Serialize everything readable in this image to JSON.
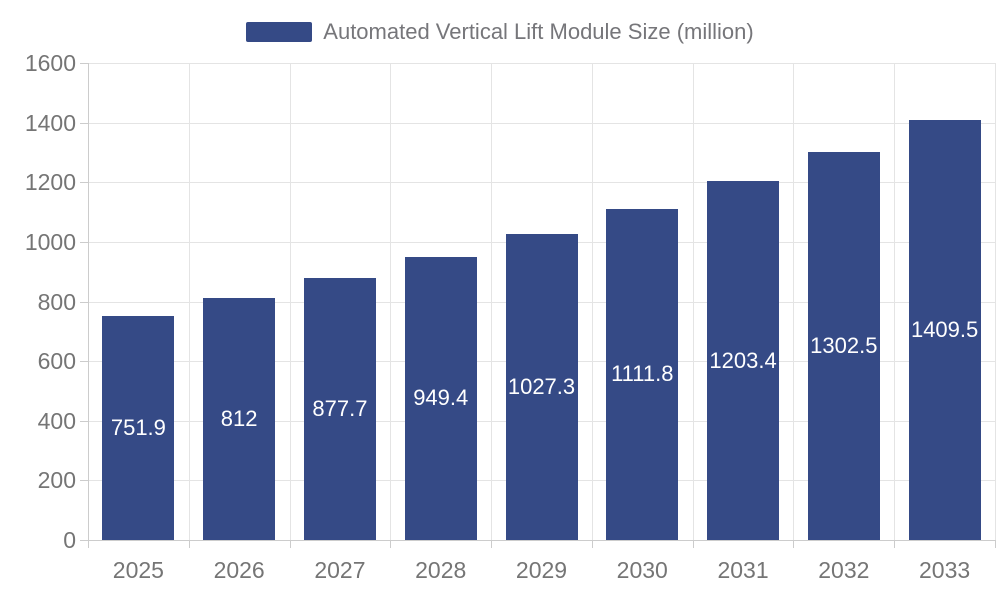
{
  "chart_data": {
    "type": "bar",
    "title": "Automated Vertical Lift Module Size (million)",
    "legend": [
      "Automated Vertical Lift Module Size (million)"
    ],
    "legend_position": "top-center",
    "categories": [
      "2025",
      "2026",
      "2027",
      "2028",
      "2029",
      "2030",
      "2031",
      "2032",
      "2033"
    ],
    "series": [
      {
        "name": "Automated Vertical Lift Module Size (million)",
        "values": [
          751.9,
          812,
          877.7,
          949.4,
          1027.3,
          1111.8,
          1203.4,
          1302.5,
          1409.5
        ],
        "labels": [
          "751.9",
          "812",
          "877.7",
          "949.4",
          "1027.3",
          "1111.8",
          "1203.4",
          "1302.5",
          "1409.5"
        ]
      }
    ],
    "xlabel": "",
    "ylabel": "",
    "ylim": [
      0,
      1600
    ],
    "yticks": [
      0,
      200,
      400,
      600,
      800,
      1000,
      1200,
      1400,
      1600
    ],
    "ytick_labels": [
      "0",
      "200",
      "400",
      "600",
      "800",
      "1000",
      "1200",
      "1400",
      "1600"
    ],
    "grid": true,
    "bar_label_position": "inside-middle",
    "colors": {
      "bar": "#354a86",
      "grid": "#e4e4e4",
      "axis": "#cccccc",
      "tick_text": "#757575",
      "legend_text": "#76767a",
      "bar_label": "#ffffff",
      "background": "#ffffff"
    }
  }
}
